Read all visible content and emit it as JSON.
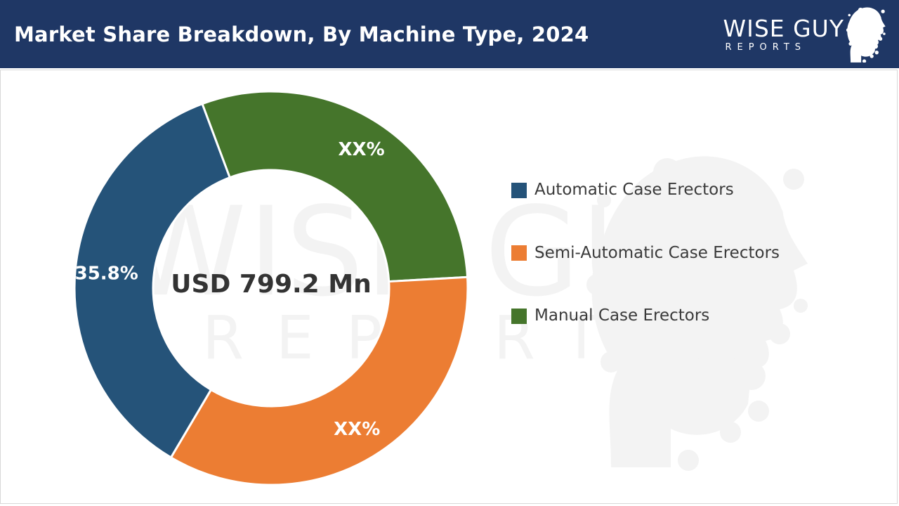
{
  "header": {
    "title": "Market Share Breakdown, By Machine Type, 2024",
    "logo": {
      "name": "Wise Guy Reports",
      "line1": "WISE GUY",
      "line2": "REPORTS"
    }
  },
  "chart_data": {
    "type": "pie",
    "subtype": "donut",
    "title": "Market Share Breakdown, By Machine Type, 2024",
    "center_label": "USD 799.2 Mn",
    "start_angle_deg_cw_from_top": -20.5,
    "inner_radius_fraction": 0.6,
    "label_radius_fraction": 0.84,
    "legend_position": "right",
    "slices": [
      {
        "label": "Manual Case Erectors",
        "display_label": "XX%",
        "value_pct_est": 29.8,
        "color": "#45752B"
      },
      {
        "label": "Semi-Automatic Case Erectors",
        "display_label": "XX%",
        "value_pct_est": 34.4,
        "color": "#EC7D33"
      },
      {
        "label": "Automatic Case Erectors",
        "display_label": "35.8%",
        "value_pct_est": 35.8,
        "color": "#255379"
      }
    ],
    "legend": [
      {
        "label": "Automatic Case Erectors",
        "color": "#255379"
      },
      {
        "label": "Semi-Automatic Case Erectors",
        "color": "#EC7D33"
      },
      {
        "label": "Manual Case Erectors",
        "color": "#45752B"
      }
    ]
  },
  "watermark": {
    "line1": "WISE GUY",
    "line2": "REPORTS"
  },
  "colors": {
    "header_bg": "#1F3765",
    "content_border": "#D8D8D8",
    "center_text": "#333333",
    "legend_text": "#3A3A3A",
    "slice_label_text": "#FFFFFF",
    "watermark": "#F3F3F3",
    "title_text": "#FFFFFF"
  }
}
